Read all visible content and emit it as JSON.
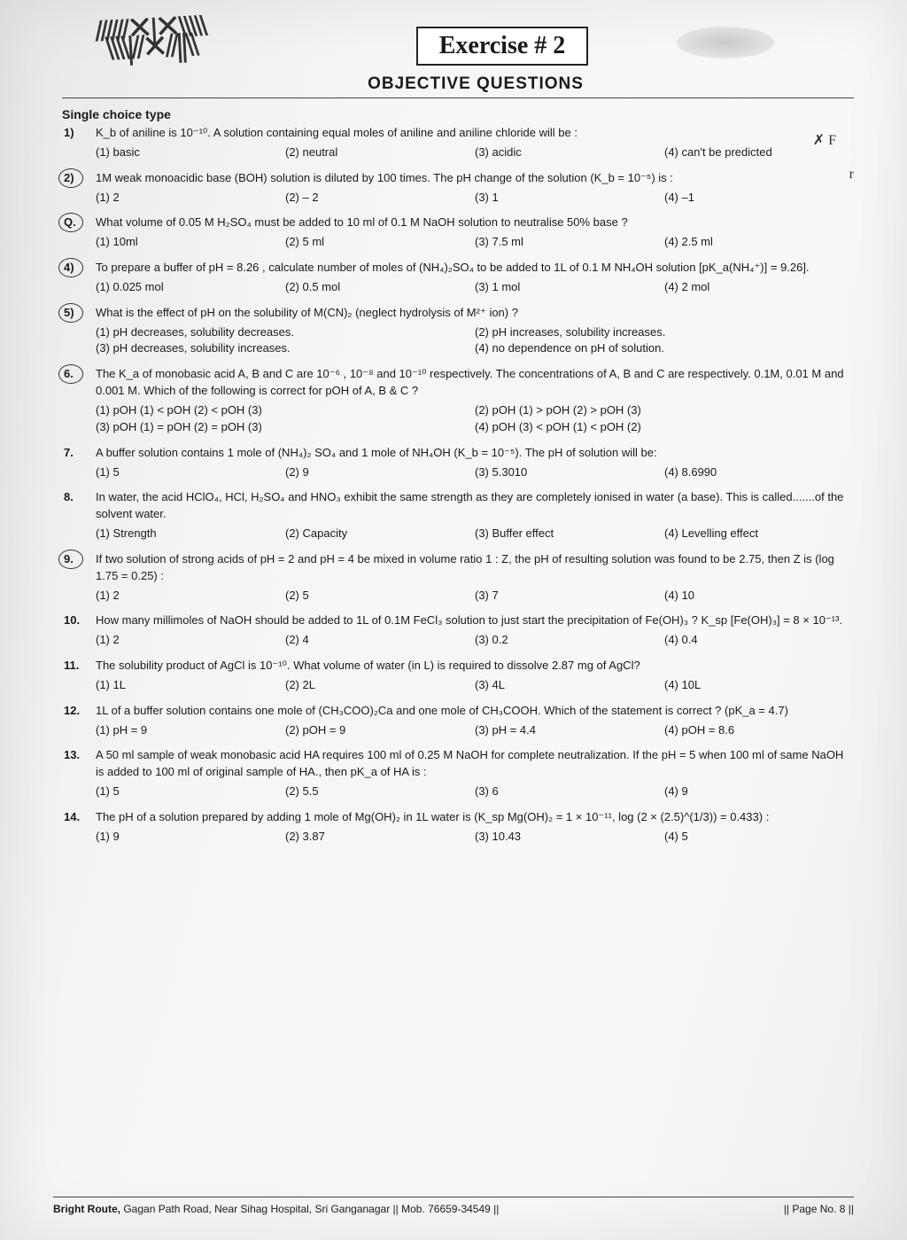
{
  "header": {
    "title": "Exercise # 2",
    "subtitle": "OBJECTIVE QUESTIONS",
    "section": "Single choice type"
  },
  "questions": [
    {
      "num": "1)",
      "circled": false,
      "text": "K_b of aniline is 10⁻¹⁰. A solution containing equal moles of aniline and aniline chloride will be :",
      "opts": [
        "(1) basic",
        "(2) neutral",
        "(3) acidic",
        "(4) can't be predicted"
      ]
    },
    {
      "num": "2)",
      "circled": true,
      "text": "1M weak monoacidic base (BOH) solution is diluted by 100 times. The pH change of the solution (K_b = 10⁻⁵) is :",
      "opts": [
        "(1) 2",
        "(2) – 2",
        "(3) 1",
        "(4) –1"
      ]
    },
    {
      "num": "Q.",
      "circled": true,
      "text": "What volume of 0.05 M H₂SO₄ must be added to 10 ml of 0.1 M NaOH solution to neutralise 50% base ?",
      "opts": [
        "(1) 10ml",
        "(2) 5 ml",
        "(3) 7.5 ml",
        "(4) 2.5 ml"
      ]
    },
    {
      "num": "4)",
      "circled": true,
      "text": "To prepare a buffer of pH = 8.26 , calculate number of moles of (NH₄)₂SO₄ to be added to 1L of 0.1 M NH₄OH solution [pK_a(NH₄⁺)] = 9.26].",
      "opts": [
        "(1) 0.025 mol",
        "(2) 0.5 mol",
        "(3) 1 mol",
        "(4) 2 mol"
      ]
    },
    {
      "num": "5)",
      "circled": true,
      "text": "What is the effect of pH on the solubility of M(CN)₂ (neglect hydrolysis of M²⁺ ion) ?",
      "opts": [
        "(1) pH decreases, solubility decreases.",
        "(2) pH increases, solubility increases.",
        "(3) pH decreases, solubility increases.",
        "(4) no dependence on pH of solution."
      ]
    },
    {
      "num": "6.",
      "circled": true,
      "text": "The K_a of monobasic acid A, B and C are 10⁻⁶ , 10⁻⁸ and 10⁻¹⁰ respectively. The concentrations of A, B and C are respectively. 0.1M, 0.01 M and 0.001 M. Which of the following is correct for pOH of A, B & C ?",
      "opts": [
        "(1) pOH (1) < pOH (2) < pOH (3)",
        "(2) pOH (1) > pOH (2) > pOH (3)",
        "(3) pOH (1) = pOH (2) = pOH (3)",
        "(4) pOH (3) < pOH (1) < pOH (2)"
      ]
    },
    {
      "num": "7.",
      "circled": false,
      "text": "A buffer solution contains 1 mole of (NH₄)₂ SO₄ and 1 mole of NH₄OH (K_b = 10⁻⁵). The pH of solution will be:",
      "opts": [
        "(1) 5",
        "(2) 9",
        "(3) 5.3010",
        "(4) 8.6990"
      ]
    },
    {
      "num": "8.",
      "circled": false,
      "text": "In water, the acid HClO₄, HCl, H₂SO₄ and HNO₃ exhibit the same strength as they are completely ionised in water (a base). This is called.......of the solvent water.",
      "opts": [
        "(1) Strength",
        "(2) Capacity",
        "(3) Buffer effect",
        "(4) Levelling effect"
      ]
    },
    {
      "num": "9.",
      "circled": true,
      "text": "If two solution of strong acids of pH = 2 and pH = 4 be mixed in volume ratio 1 : Z, the pH of resulting solution was found to be 2.75, then Z is (log 1.75 = 0.25) :",
      "opts": [
        "(1) 2",
        "(2) 5",
        "(3) 7",
        "(4) 10"
      ]
    },
    {
      "num": "10.",
      "circled": false,
      "text": "How many millimoles of NaOH should be added to 1L of 0.1M FeCl₃ solution to just start the precipitation of Fe(OH)₃ ? K_sp [Fe(OH)₃] = 8 × 10⁻¹³.",
      "opts": [
        "(1) 2",
        "(2) 4",
        "(3) 0.2",
        "(4) 0.4"
      ]
    },
    {
      "num": "11.",
      "circled": false,
      "text": "The solubility product of AgCl is 10⁻¹⁰. What volume of water (in L) is required to dissolve 2.87 mg of AgCl?",
      "opts": [
        "(1) 1L",
        "(2) 2L",
        "(3) 4L",
        "(4) 10L"
      ]
    },
    {
      "num": "12.",
      "circled": false,
      "text": "1L of a buffer solution contains one mole of (CH₃COO)₂Ca and one mole of CH₃COOH. Which of the statement is correct ? (pK_a = 4.7)",
      "opts": [
        "(1) pH = 9",
        "(2) pOH = 9",
        "(3) pH = 4.4",
        "(4) pOH = 8.6"
      ]
    },
    {
      "num": "13.",
      "circled": false,
      "text": "A 50 ml sample of weak monobasic acid HA requires 100 ml of 0.25 M NaOH for complete neutralization. If the pH = 5 when 100 ml of same NaOH is added to 100 ml of original sample of HA., then pK_a of HA is :",
      "opts": [
        "(1) 5",
        "(2) 5.5",
        "(3) 6",
        "(4) 9"
      ]
    },
    {
      "num": "14.",
      "circled": false,
      "text": "The pH of a solution prepared by adding 1 mole of Mg(OH)₂ in 1L water is (K_sp Mg(OH)₂ = 1 × 10⁻¹¹, log (2 × (2.5)^(1/3)) = 0.433) :",
      "opts": [
        "(1) 9",
        "(2) 3.87",
        "(3) 10.43",
        "(4) 5"
      ]
    }
  ],
  "footer": {
    "left": "Bright Route, Gagan Path Road, Near Sihag Hospital, Sri Ganganagar || Mob. 76659-34549 ||",
    "right": "|| Page No. 8 ||"
  },
  "annotations": {
    "handmark1": "✗ F",
    "handmark2": "r"
  }
}
